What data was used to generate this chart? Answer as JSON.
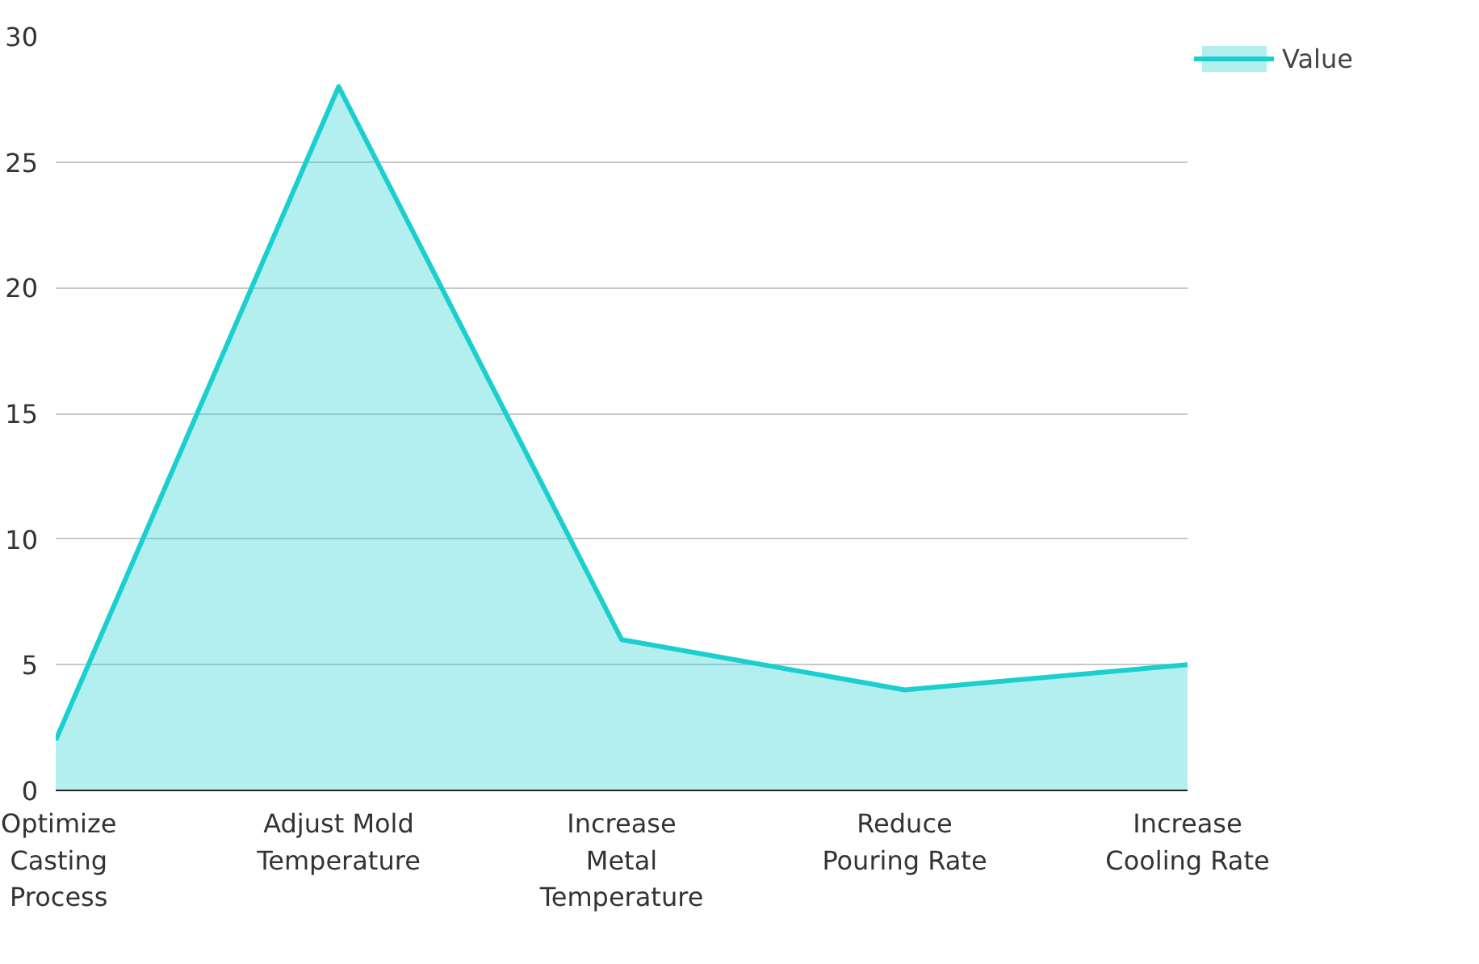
{
  "chart_data": {
    "type": "area",
    "categories": [
      "Optimize Casting Process",
      "Adjust Mold Temperature",
      "Increase Metal Temperature",
      "Reduce Pouring Rate",
      "Increase Cooling Rate"
    ],
    "series": [
      {
        "name": "Value",
        "color": "#1ccfcf",
        "values": [
          2,
          28,
          6,
          4,
          5
        ]
      }
    ],
    "ylim": [
      0,
      30
    ],
    "yticks": [
      0,
      5,
      10,
      15,
      20,
      25,
      30
    ],
    "grid": "y",
    "legend": "top right"
  }
}
